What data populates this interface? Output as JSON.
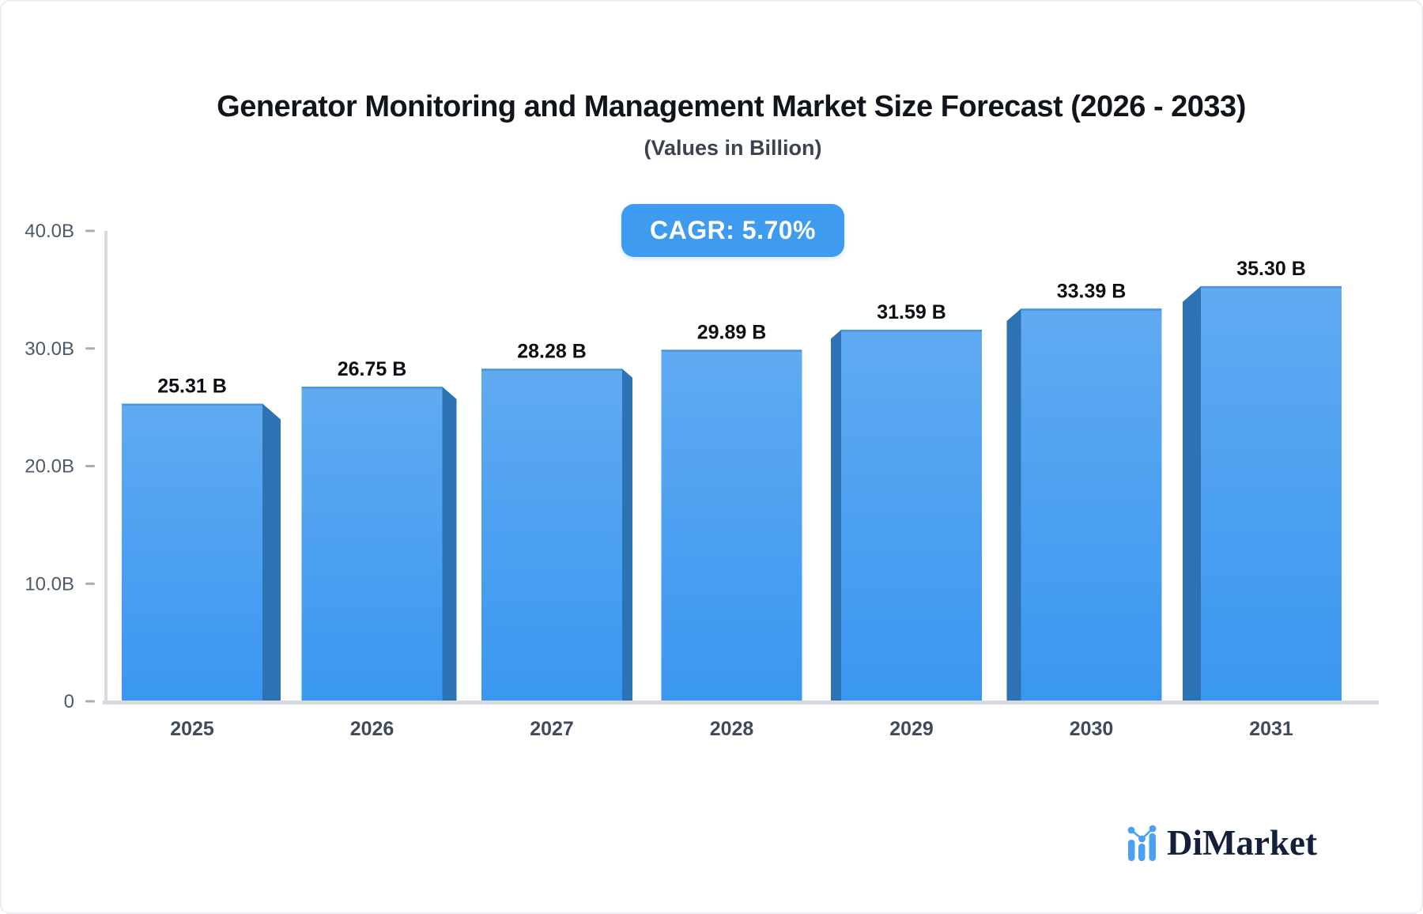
{
  "header": {
    "title": "Generator Monitoring and Management Market Size Forecast (2026 - 2033)",
    "subtitle": "(Values in Billion)"
  },
  "badge": {
    "label": "CAGR: 5.70%"
  },
  "chart_data": {
    "type": "bar",
    "title": "Generator Monitoring and Management Market Size Forecast (2026 - 2033)",
    "subtitle": "(Values in Billion)",
    "annotation": "CAGR: 5.70%",
    "categories": [
      "2025",
      "2026",
      "2027",
      "2028",
      "2029",
      "2030",
      "2031"
    ],
    "values": [
      25.31,
      26.75,
      28.28,
      29.89,
      31.59,
      33.39,
      35.3
    ],
    "value_labels": [
      "25.31 B",
      "26.75 B",
      "28.28 B",
      "29.89 B",
      "31.59 B",
      "33.39 B",
      "35.30 B"
    ],
    "ylim": [
      0,
      40
    ],
    "yticks": {
      "values": [
        40,
        30,
        20,
        10,
        0
      ],
      "labels": [
        "40.0B",
        "30.0B",
        "20.0B",
        "10.0B",
        "0"
      ]
    },
    "xlabel": "",
    "ylabel": "",
    "grid": false,
    "legend": "none",
    "bar_style": "3d-perspective-center-vanishing"
  },
  "footer": {
    "brand": "DiMarket",
    "icon": "bar-chart-trend-icon"
  },
  "colors": {
    "accent_badge": "#3e9bf0",
    "bar_face_top": "#60aaf1",
    "bar_face_bottom": "#3a97f1",
    "bar_top_edge": "#478fd9",
    "bar_side": "#2d73b3",
    "axis_line": "#d7dbe1",
    "tick_dash": "#a6adb7",
    "tick_text": "#4d5a68",
    "x_text": "#3f4a5a",
    "value_text": "#0b0e12",
    "title_text": "#10151c",
    "subtitle_text": "#3a4350",
    "brand_text": "#142039",
    "brand_icon": "#4ba0f4"
  }
}
